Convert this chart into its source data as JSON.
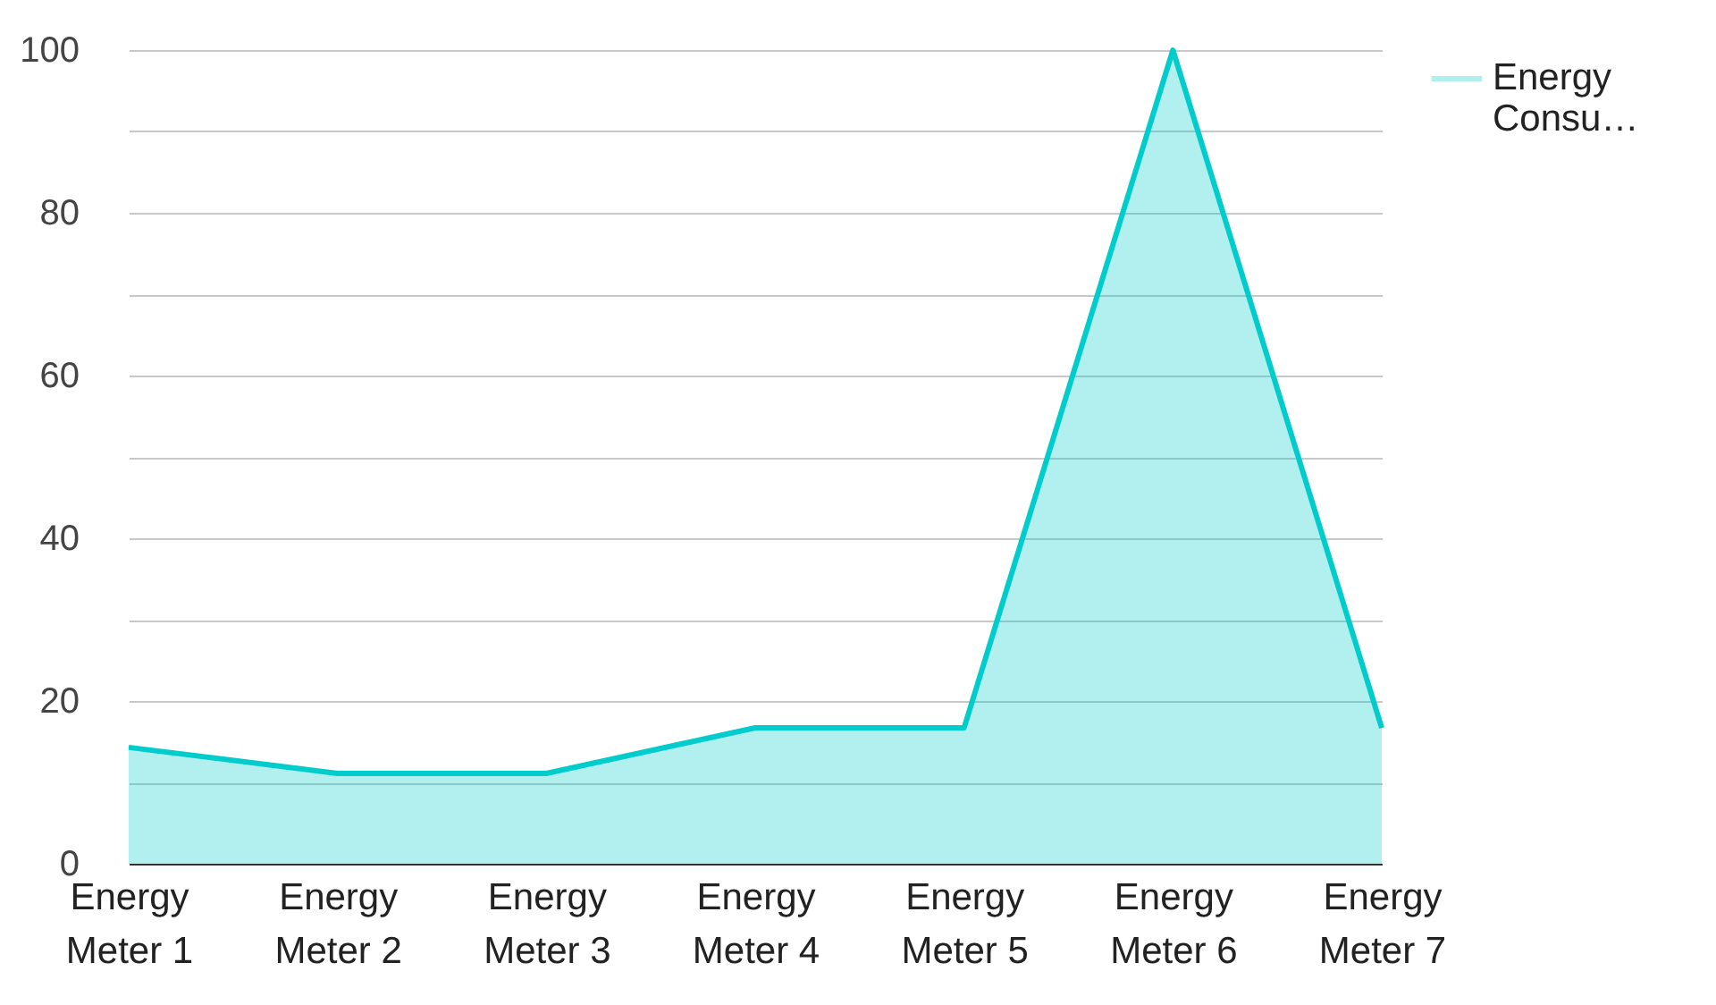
{
  "chart_data": {
    "type": "area",
    "categories": [
      "Energy Meter 1",
      "Energy Meter 2",
      "Energy Meter 3",
      "Energy Meter 4",
      "Energy Meter 5",
      "Energy Meter 6",
      "Energy Meter 7"
    ],
    "series": [
      {
        "name": "Energy Consu…",
        "color": "#00cccc",
        "values": [
          14.3,
          11.1,
          11.1,
          16.7,
          16.7,
          100,
          16.7
        ]
      }
    ],
    "ylim": [
      0,
      100
    ],
    "yticks": [
      0,
      {
        "value": 10,
        "label": null
      },
      20,
      {
        "value": 30,
        "label": null
      },
      40,
      {
        "value": 50,
        "label": null
      },
      60,
      {
        "value": 70,
        "label": null
      },
      80,
      {
        "value": 90,
        "label": null
      },
      100
    ],
    "grid": "y",
    "legend": "top right"
  }
}
